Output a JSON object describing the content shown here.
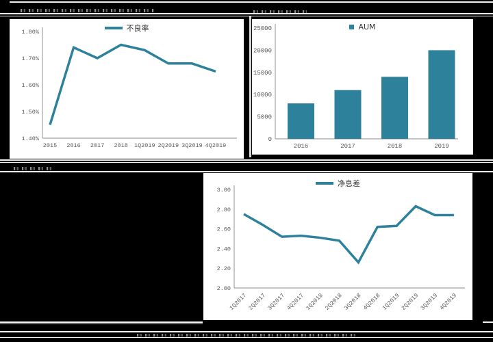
{
  "page": {
    "background": "#000000",
    "panel_background": "#ffffff",
    "accent_teal": "#2e819b",
    "axis_color": "#b0b0b0",
    "tick_text_color": "#595959"
  },
  "chart_data": [
    {
      "type": "line",
      "legend": "不良率",
      "categories": [
        "2015",
        "2016",
        "2017",
        "2018",
        "1Q2019",
        "2Q2019",
        "3Q2019",
        "4Q2019"
      ],
      "values": [
        1.45,
        1.74,
        1.7,
        1.75,
        1.73,
        1.68,
        1.68,
        1.65
      ],
      "y_ticks": [
        "1.80%",
        "1.70%",
        "1.60%",
        "1.50%",
        "1.40%"
      ],
      "ylim": [
        1.4,
        1.8
      ],
      "line_color": "#2e819b",
      "legend_position": "top",
      "grid": false
    },
    {
      "type": "bar",
      "legend": "AUM",
      "categories": [
        "2016",
        "2017",
        "2018",
        "2019"
      ],
      "values": [
        8000,
        11000,
        14000,
        20000
      ],
      "y_ticks": [
        "25000",
        "20000",
        "15000",
        "10000",
        "5000",
        "0"
      ],
      "ylim": [
        0,
        25000
      ],
      "bar_color": "#2e819b",
      "legend_position": "top",
      "grid": false
    },
    {
      "type": "line",
      "legend": "净息差",
      "categories": [
        "1Q2017",
        "2Q2017",
        "3Q2017",
        "4Q2017",
        "1Q2018",
        "2Q2018",
        "3Q2018",
        "4Q2018",
        "1Q2019",
        "2Q2019",
        "3Q2019",
        "4Q2019"
      ],
      "values": [
        2.75,
        2.64,
        2.52,
        2.53,
        2.51,
        2.48,
        2.26,
        2.62,
        2.63,
        2.83,
        2.74,
        2.74
      ],
      "y_ticks": [
        "3.00",
        "2.80",
        "2.60",
        "2.40",
        "2.20",
        "2.00"
      ],
      "ylim": [
        2.0,
        3.0
      ],
      "line_color": "#2e819b",
      "legend_position": "top",
      "grid": false
    }
  ]
}
